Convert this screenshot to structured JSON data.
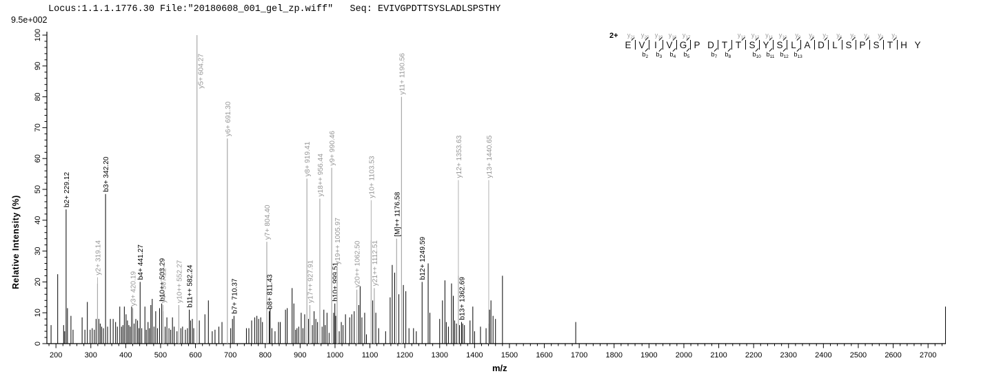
{
  "header": {
    "line": "Locus:1.1.1.1776.30 File:\"20180608_001_gel_zp.wiff\"   Seq: EVIVGPDTTSYSLADLSPSTHY",
    "intensity_scale": "9.5e+002"
  },
  "axes": {
    "ylabel": "Relative  Intensity (%)",
    "xlabel": "m/z",
    "y_ticks": [
      0,
      10,
      20,
      30,
      40,
      50,
      60,
      70,
      80,
      90,
      100
    ],
    "x_ticks": [
      200,
      300,
      400,
      500,
      600,
      700,
      800,
      900,
      1000,
      1100,
      1200,
      1300,
      1400,
      1500,
      1600,
      1700,
      1800,
      1900,
      2000,
      2100,
      2200,
      2300,
      2400,
      2500,
      2600,
      2700
    ]
  },
  "sequence": {
    "charge": "2+",
    "residues": "EVIVGPDTTSYSLADLSPSTHY",
    "cells": [
      {
        "t": "aa",
        "ch": "E"
      },
      {
        "t": "sep",
        "y": "y21",
        "bar": true
      },
      {
        "t": "aa",
        "ch": "V"
      },
      {
        "t": "sep",
        "y": "y20",
        "b": "b2",
        "bar": true
      },
      {
        "t": "aa",
        "ch": "I"
      },
      {
        "t": "sep",
        "y": "y19",
        "b": "b3",
        "bar": true
      },
      {
        "t": "aa",
        "ch": "V"
      },
      {
        "t": "sep",
        "y": "y18",
        "b": "b4",
        "bar": true
      },
      {
        "t": "aa",
        "ch": "G"
      },
      {
        "t": "sep",
        "y": "y17",
        "b": "b5",
        "bar": true
      },
      {
        "t": "aa",
        "ch": "P"
      },
      {
        "t": "sep",
        "bar": false
      },
      {
        "t": "aa",
        "ch": "D"
      },
      {
        "t": "sep",
        "b": "b7",
        "bar": true
      },
      {
        "t": "aa",
        "ch": "T"
      },
      {
        "t": "sep",
        "b": "b8",
        "bar": true
      },
      {
        "t": "aa",
        "ch": "T"
      },
      {
        "t": "sep",
        "y": "y13",
        "bar": true
      },
      {
        "t": "aa",
        "ch": "S"
      },
      {
        "t": "sep",
        "y": "y12",
        "b": "b10",
        "bar": true
      },
      {
        "t": "aa",
        "ch": "Y"
      },
      {
        "t": "sep",
        "y": "y11",
        "b": "b11",
        "bar": true
      },
      {
        "t": "aa",
        "ch": "S"
      },
      {
        "t": "sep",
        "y": "y10",
        "b": "b12",
        "bar": true
      },
      {
        "t": "aa",
        "ch": "L"
      },
      {
        "t": "sep",
        "y": "y9",
        "b": "b13",
        "bar": true
      },
      {
        "t": "aa",
        "ch": "A"
      },
      {
        "t": "sep",
        "y": "y8",
        "bar": true
      },
      {
        "t": "aa",
        "ch": "D"
      },
      {
        "t": "sep",
        "y": "y7",
        "bar": true
      },
      {
        "t": "aa",
        "ch": "L"
      },
      {
        "t": "sep",
        "y": "y6",
        "bar": true
      },
      {
        "t": "aa",
        "ch": "S"
      },
      {
        "t": "sep",
        "y": "y5",
        "bar": true
      },
      {
        "t": "aa",
        "ch": "P"
      },
      {
        "t": "sep",
        "y": "y4",
        "bar": true
      },
      {
        "t": "aa",
        "ch": "S"
      },
      {
        "t": "sep",
        "y": "y3",
        "bar": true
      },
      {
        "t": "aa",
        "ch": "T"
      },
      {
        "t": "sep",
        "y": "y2",
        "bar": true
      },
      {
        "t": "aa",
        "ch": "H"
      },
      {
        "t": "sep",
        "bar": false
      },
      {
        "t": "aa",
        "ch": "Y"
      }
    ]
  },
  "chart_data": {
    "type": "bar",
    "title": "MS/MS spectrum",
    "xlabel": "m/z",
    "ylabel": "Relative  Intensity (%)",
    "xlim": [
      174,
      2778
    ],
    "ylim": [
      0,
      100
    ],
    "colors": {
      "b_ion": "#000000",
      "y_ion": "#a8a8a8",
      "y_label": "#979797",
      "unlabeled": "#000000"
    },
    "labeled_peaks": [
      {
        "mz": 229.12,
        "h": 43.5,
        "text": "b2+ 229.12",
        "ion": "b"
      },
      {
        "mz": 319.14,
        "h": 19.5,
        "text": "y2+ 319.14",
        "ion": "y",
        "lift": 21.5
      },
      {
        "mz": 342.2,
        "h": 48.5,
        "text": "b3+ 342.20",
        "ion": "b"
      },
      {
        "mz": 420.19,
        "h": 11.5,
        "text": "y3+ 420.19",
        "ion": "y"
      },
      {
        "mz": 441.27,
        "h": 20,
        "text": "b4+ 441.27",
        "ion": "b"
      },
      {
        "mz": 503.29,
        "h": 13,
        "text": "b10++ 503.29",
        "ion": "b"
      },
      {
        "mz": 507.22,
        "h": 10.5,
        "text": "y4+ 507.22",
        "ion": "y",
        "lift": 12.5
      },
      {
        "mz": 552.27,
        "h": 12.5,
        "text": "y10++ 552.27",
        "ion": "y"
      },
      {
        "mz": 582.24,
        "h": 11,
        "text": "b11++ 582.24",
        "ion": "b"
      },
      {
        "mz": 604.27,
        "h": 100,
        "text": "y5+ 604.27",
        "ion": "y",
        "lift": 82,
        "dx": 9
      },
      {
        "mz": 691.3,
        "h": 66.5,
        "text": "y6+ 691.30",
        "ion": "y"
      },
      {
        "mz": 710.37,
        "h": 9,
        "text": "b7+ 710.37",
        "ion": "b"
      },
      {
        "mz": 804.4,
        "h": 33,
        "text": "y7+ 804.40",
        "ion": "y"
      },
      {
        "mz": 811.43,
        "h": 10.5,
        "text": "b8+ 811.43",
        "ion": "b"
      },
      {
        "mz": 919.41,
        "h": 53.5,
        "text": "y8+ 919.41",
        "ion": "y"
      },
      {
        "mz": 927.91,
        "h": 12.5,
        "text": "y17++ 927.91",
        "ion": "y"
      },
      {
        "mz": 956.44,
        "h": 47,
        "text": "y18++ 956.44",
        "ion": "y"
      },
      {
        "mz": 990.46,
        "h": 57,
        "text": "y9+ 990.46",
        "ion": "y"
      },
      {
        "mz": 999.51,
        "h": 13,
        "text": "b10+ 999.51",
        "ion": "b"
      },
      {
        "mz": 1005.97,
        "h": 25,
        "text": "y19++ 1005.97",
        "ion": "y"
      },
      {
        "mz": 1062.5,
        "h": 17.5,
        "text": "y20++ 1062.50",
        "ion": "y"
      },
      {
        "mz": 1103.53,
        "h": 33.5,
        "text": "y10+ 1103.53",
        "ion": "y",
        "lift": 46.5
      },
      {
        "mz": 1112.51,
        "h": 18,
        "text": "y21++ 1112.51",
        "ion": "y"
      },
      {
        "mz": 1176.58,
        "h": 34,
        "text": "[M]++ 1176.58",
        "ion": "M"
      },
      {
        "mz": 1190.56,
        "h": 80,
        "text": "y11+ 1190.56",
        "ion": "y"
      },
      {
        "mz": 1249.59,
        "h": 20,
        "text": "b12+ 1249.59",
        "ion": "b"
      },
      {
        "mz": 1353.63,
        "h": 22,
        "text": "y12+ 1353.63",
        "ion": "y",
        "lift": 53
      },
      {
        "mz": 1362.69,
        "h": 7,
        "text": "b13+ 1362.69",
        "ion": "b"
      },
      {
        "mz": 1440.65,
        "h": 6.5,
        "text": "y13+ 1440.65",
        "ion": "y",
        "lift": 53
      }
    ],
    "unlabeled_peaks": [
      [
        186,
        6
      ],
      [
        205,
        22.5
      ],
      [
        222,
        6
      ],
      [
        225,
        4
      ],
      [
        233,
        11.5
      ],
      [
        243,
        9
      ],
      [
        249,
        4.5
      ],
      [
        275,
        8.5
      ],
      [
        283,
        4.5
      ],
      [
        290,
        13.5
      ],
      [
        298,
        4.5
      ],
      [
        304,
        5
      ],
      [
        310,
        4.5
      ],
      [
        315,
        8
      ],
      [
        323,
        8
      ],
      [
        327,
        6.5
      ],
      [
        331,
        5.5
      ],
      [
        336,
        5
      ],
      [
        348,
        5.5
      ],
      [
        356,
        8
      ],
      [
        364,
        8
      ],
      [
        371,
        7
      ],
      [
        376,
        5.5
      ],
      [
        383,
        12
      ],
      [
        388,
        5.5
      ],
      [
        392,
        6
      ],
      [
        396,
        12
      ],
      [
        401,
        9.5
      ],
      [
        405,
        7.5
      ],
      [
        409,
        6
      ],
      [
        413,
        5.5
      ],
      [
        417,
        12
      ],
      [
        424,
        6.5
      ],
      [
        429,
        8
      ],
      [
        434,
        7.5
      ],
      [
        438,
        5
      ],
      [
        446,
        5
      ],
      [
        455,
        12
      ],
      [
        459,
        4.5
      ],
      [
        464,
        7
      ],
      [
        468,
        5
      ],
      [
        472,
        12.5
      ],
      [
        476,
        14.5
      ],
      [
        481,
        5.5
      ],
      [
        486,
        10.5
      ],
      [
        491,
        5
      ],
      [
        497,
        11.5
      ],
      [
        513,
        5.5
      ],
      [
        518,
        8.5
      ],
      [
        524,
        5
      ],
      [
        529,
        4.5
      ],
      [
        534,
        8.5
      ],
      [
        539,
        5.5
      ],
      [
        547,
        4
      ],
      [
        558,
        5
      ],
      [
        563,
        5.5
      ],
      [
        571,
        4.5
      ],
      [
        577,
        5
      ],
      [
        586,
        7.5
      ],
      [
        591,
        8
      ],
      [
        595,
        5
      ],
      [
        611,
        7.5
      ],
      [
        627,
        9.5
      ],
      [
        637,
        14
      ],
      [
        648,
        4
      ],
      [
        656,
        4.5
      ],
      [
        667,
        5.5
      ],
      [
        676,
        7
      ],
      [
        701,
        5
      ],
      [
        706,
        8
      ],
      [
        746,
        5
      ],
      [
        753,
        5
      ],
      [
        761,
        7.5
      ],
      [
        770,
        8.5
      ],
      [
        776,
        9
      ],
      [
        781,
        8
      ],
      [
        787,
        8.5
      ],
      [
        792,
        7
      ],
      [
        814,
        11.5
      ],
      [
        819,
        5
      ],
      [
        828,
        4
      ],
      [
        838,
        7
      ],
      [
        843,
        7
      ],
      [
        858,
        11
      ],
      [
        863,
        11.5
      ],
      [
        877,
        18
      ],
      [
        882,
        13
      ],
      [
        887,
        4.5
      ],
      [
        891,
        5
      ],
      [
        896,
        5.5
      ],
      [
        903,
        10
      ],
      [
        908,
        5
      ],
      [
        913,
        9.5
      ],
      [
        924,
        8
      ],
      [
        935,
        6
      ],
      [
        940,
        10.5
      ],
      [
        945,
        8
      ],
      [
        950,
        7
      ],
      [
        963,
        5.5
      ],
      [
        968,
        11
      ],
      [
        972,
        6
      ],
      [
        977,
        10
      ],
      [
        983,
        3.5
      ],
      [
        996,
        10
      ],
      [
        1002,
        9
      ],
      [
        1012,
        4
      ],
      [
        1018,
        7
      ],
      [
        1023,
        6
      ],
      [
        1030,
        9.5
      ],
      [
        1042,
        8.5
      ],
      [
        1048,
        9.5
      ],
      [
        1055,
        10.5
      ],
      [
        1068,
        12.5
      ],
      [
        1072,
        18.5
      ],
      [
        1077,
        8.5
      ],
      [
        1085,
        10
      ],
      [
        1090,
        3
      ],
      [
        1108,
        14
      ],
      [
        1117,
        10
      ],
      [
        1125,
        5
      ],
      [
        1145,
        4
      ],
      [
        1158,
        15
      ],
      [
        1164,
        25.5
      ],
      [
        1171,
        23
      ],
      [
        1183,
        16
      ],
      [
        1196,
        19
      ],
      [
        1203,
        17
      ],
      [
        1212,
        5
      ],
      [
        1225,
        5
      ],
      [
        1233,
        4
      ],
      [
        1267,
        26
      ],
      [
        1272,
        10
      ],
      [
        1300,
        8
      ],
      [
        1308,
        14
      ],
      [
        1315,
        20.5
      ],
      [
        1319,
        7
      ],
      [
        1325,
        5.5
      ],
      [
        1334,
        19.5
      ],
      [
        1339,
        15.5
      ],
      [
        1343,
        7.5
      ],
      [
        1348,
        6.5
      ],
      [
        1357,
        6
      ],
      [
        1366,
        6.5
      ],
      [
        1371,
        6
      ],
      [
        1387,
        7.5
      ],
      [
        1395,
        12
      ],
      [
        1400,
        4
      ],
      [
        1417,
        5.5
      ],
      [
        1433,
        5
      ],
      [
        1443,
        11
      ],
      [
        1447,
        14
      ],
      [
        1453,
        9
      ],
      [
        1460,
        8
      ],
      [
        1480,
        22
      ],
      [
        1690,
        7
      ],
      [
        2750,
        12
      ]
    ]
  }
}
